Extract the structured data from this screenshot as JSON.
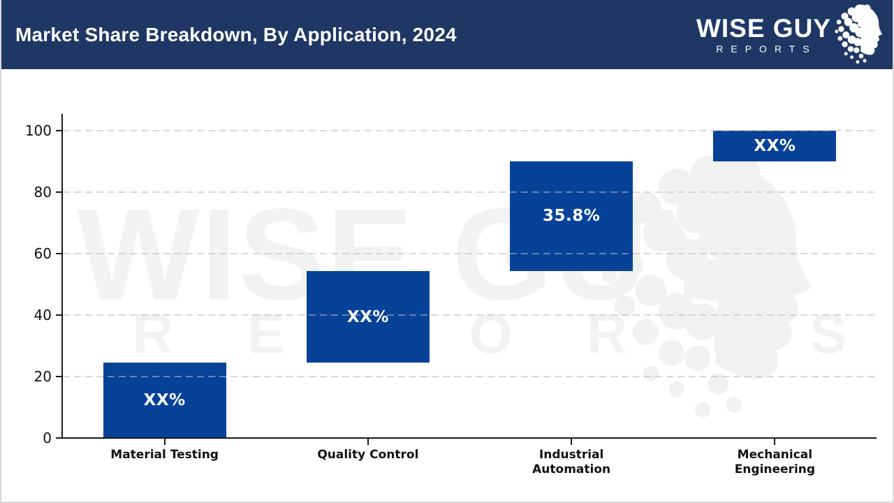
{
  "header": {
    "title": "Market Share Breakdown, By Application, 2024",
    "logo": {
      "line1": "WISE GUY",
      "line2": "REPORTS"
    }
  },
  "watermark": {
    "line1": "WISE GUY",
    "line2": "R E P O R T S"
  },
  "colors": {
    "header_bg": "#1f3765",
    "bar": "#084298",
    "axis": "#1a1a1a",
    "grid": "#bbbbbb",
    "watermark": "#f2f2f2",
    "title_text": "#ffffff"
  },
  "chart_data": {
    "type": "bar",
    "subtype": "waterfall",
    "title": "Market Share Breakdown, By Application, 2024",
    "xlabel": "",
    "ylabel": "",
    "categories": [
      "Material Testing",
      "Quality Control",
      "Industrial Automation",
      "Mechanical Engineering"
    ],
    "category_lines": [
      [
        "Material Testing"
      ],
      [
        "Quality Control"
      ],
      [
        "Industrial",
        "Automation"
      ],
      [
        "Mechanical",
        "Engineering"
      ]
    ],
    "segments": [
      {
        "category": "Material Testing",
        "start": 0,
        "end": 24.5,
        "label": "XX%"
      },
      {
        "category": "Quality Control",
        "start": 24.5,
        "end": 54.3,
        "label": "XX%"
      },
      {
        "category": "Industrial Automation",
        "start": 54.3,
        "end": 90.1,
        "label": "35.8%"
      },
      {
        "category": "Mechanical Engineering",
        "start": 90.1,
        "end": 100,
        "label": "XX%"
      }
    ],
    "yticks": [
      0,
      20,
      40,
      60,
      80,
      100
    ],
    "ylim": [
      0,
      104
    ],
    "grid": "dashed-horizontal",
    "legend": "none"
  }
}
